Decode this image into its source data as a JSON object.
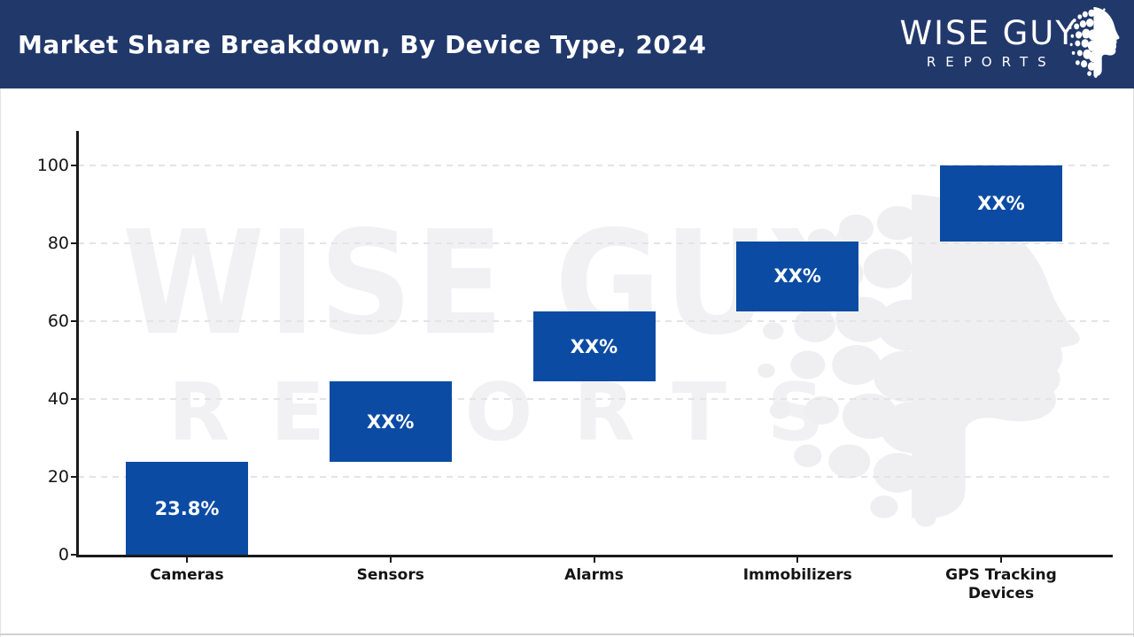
{
  "header": {
    "title": "Market Share Breakdown, By Device Type, 2024",
    "logo": {
      "primary": "WISE GUY",
      "secondary": "REPORTS"
    }
  },
  "watermark": {
    "primary": "WISE GUY",
    "secondary": "REPORTS"
  },
  "chart_data": {
    "type": "bar",
    "subtype": "waterfall",
    "title": "Market Share Breakdown, By Device Type, 2024",
    "categories": [
      "Cameras",
      "Sensors",
      "Alarms",
      "Immobilizers",
      "GPS Tracking Devices"
    ],
    "segments": [
      {
        "category": "Cameras",
        "start": 0,
        "end": 23.8,
        "label": "23.8%"
      },
      {
        "category": "Sensors",
        "start": 23.8,
        "end": 44.5,
        "label": "XX%"
      },
      {
        "category": "Alarms",
        "start": 44.5,
        "end": 62.5,
        "label": "XX%"
      },
      {
        "category": "Immobilizers",
        "start": 62.5,
        "end": 80.5,
        "label": "XX%"
      },
      {
        "category": "GPS Tracking Devices",
        "start": 80.5,
        "end": 100,
        "label": "XX%"
      }
    ],
    "yticks": [
      0,
      20,
      40,
      60,
      80,
      100
    ],
    "ylim": [
      0,
      107
    ],
    "xlabel": "",
    "ylabel": "",
    "grid": "horizontal-dashed",
    "legend": "none",
    "bar_color": "#0b4ba3",
    "bar_label_color": "#ffffff",
    "axis_color": "#1a1a1a"
  }
}
